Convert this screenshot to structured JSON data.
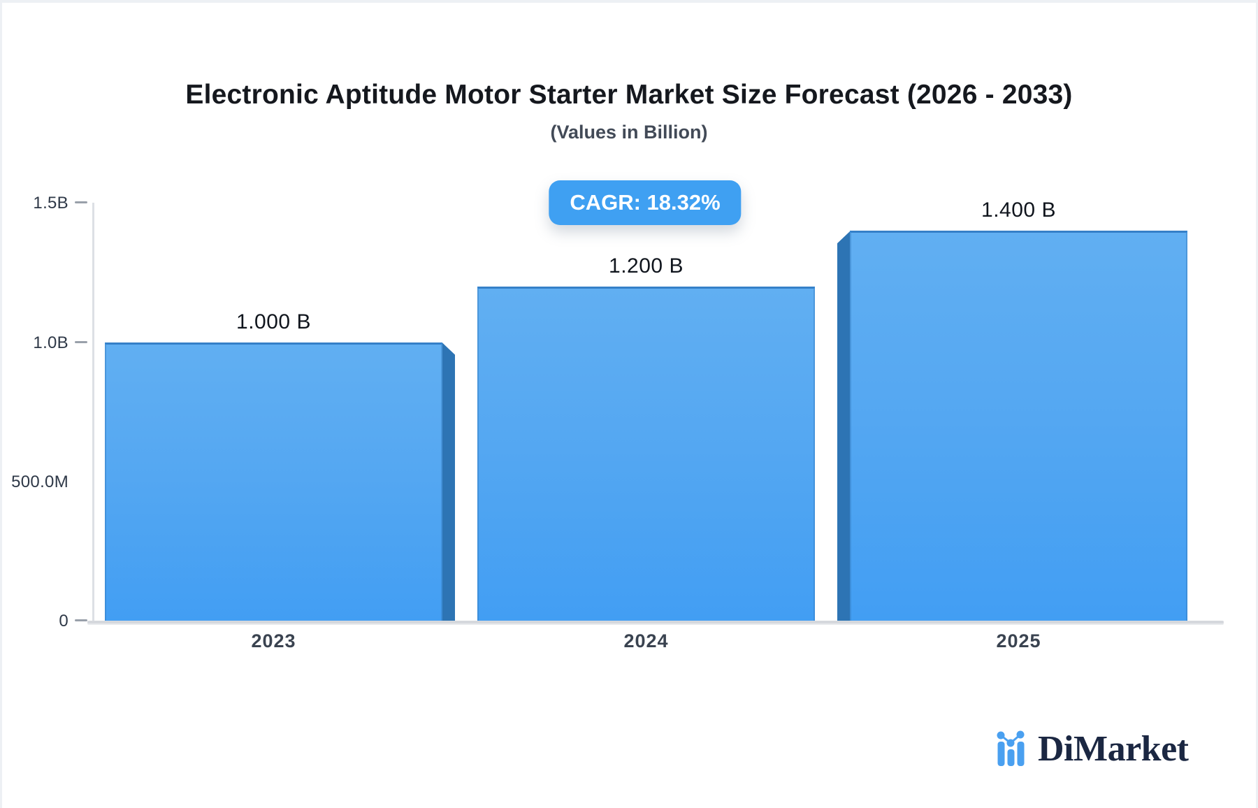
{
  "header": {
    "title": "Electronic Aptitude Motor Starter Market Size Forecast (2026 - 2033)",
    "subtitle": "(Values in Billion)",
    "cagr_label": "CAGR: 18.32%"
  },
  "chart_data": {
    "type": "bar",
    "title": "Electronic Aptitude Motor Starter Market Size Forecast (2026 - 2033)",
    "subtitle": "(Values in Billion)",
    "categories": [
      "2023",
      "2024",
      "2025"
    ],
    "values": [
      1.0,
      1.2,
      1.4
    ],
    "value_labels": [
      "1.000 B",
      "1.200 B",
      "1.400 B"
    ],
    "unit": "Billion",
    "cagr": "18.32%",
    "xlabel": "",
    "ylabel": "",
    "ylim": [
      0,
      1.5
    ],
    "yticks": [
      {
        "label": "1.5B",
        "value": 1.5,
        "dash": true
      },
      {
        "label": "1.0B",
        "value": 1.0,
        "dash": true
      },
      {
        "label": "500.0M",
        "value": 0.5,
        "dash": false
      },
      {
        "label": "0",
        "value": 0.0,
        "dash": true
      }
    ],
    "grid": false,
    "legend": false,
    "colors": {
      "bar_top": "#61aff2",
      "bar_bottom": "#429ef3",
      "bar_side": "#2d74b4",
      "badge_background": "#3fa0f2",
      "badge_text": "#ffffff",
      "axis_line": "#d5d8dd",
      "tick_text": "#2e3847"
    }
  },
  "logo": {
    "text": "DiMarket",
    "text_color": "#1b2742",
    "icon": "mini-bar-chart-icon",
    "icon_color": "#4aa0f0"
  }
}
